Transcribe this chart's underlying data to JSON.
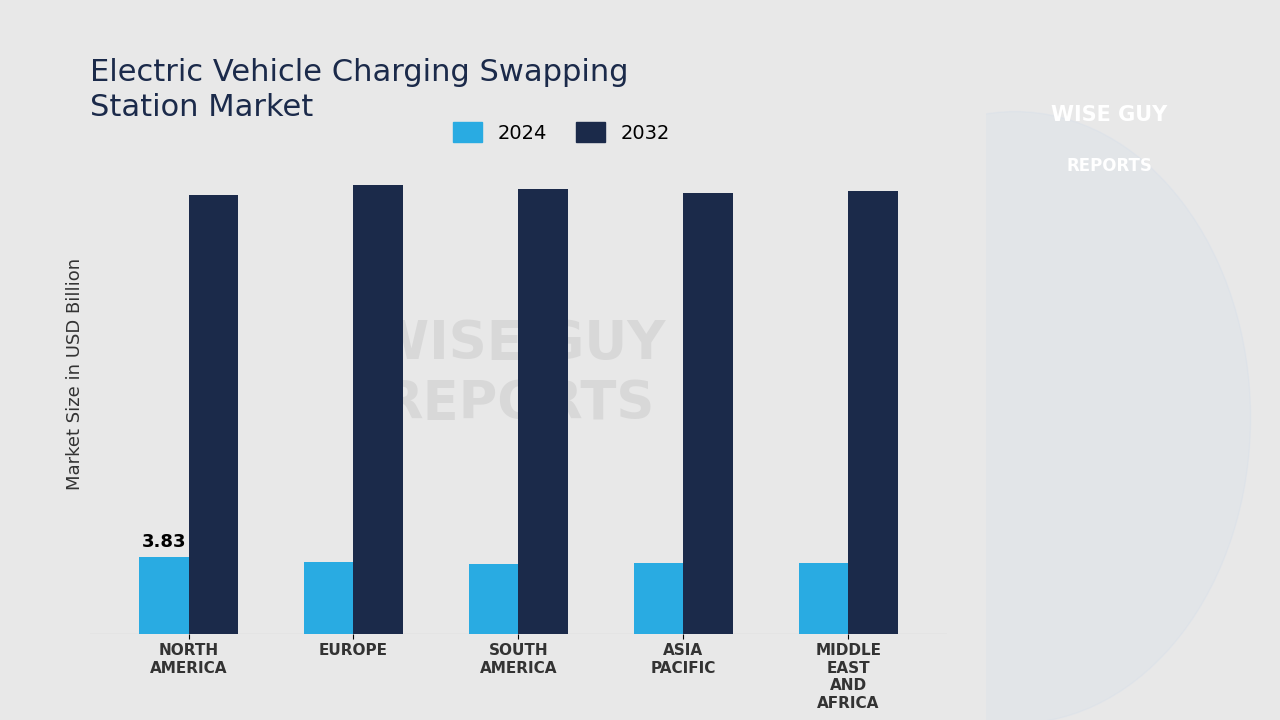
{
  "title": "Electric Vehicle Charging Swapping\nStation Market",
  "ylabel": "Market Size in USD Billion",
  "categories": [
    "NORTH\nAMERICA",
    "EUROPE",
    "SOUTH\nAMERICA",
    "ASIA\nPACIFIC",
    "MIDDLE\nEAST\nAND\nAFRICA"
  ],
  "values_2024": [
    3.83,
    3.6,
    3.5,
    3.55,
    3.52
  ],
  "values_2032": [
    22.0,
    22.5,
    22.3,
    22.1,
    22.2
  ],
  "label_2024_value": "3.83",
  "label_2024_index": 0,
  "color_2024": "#29ABE2",
  "color_2032": "#1B2A4A",
  "legend_label_2024": "2024",
  "legend_label_2032": "2032",
  "bg_color": "#E8E8E8",
  "plot_bg_color": "#E8E8E8",
  "title_color": "#1B2A4A",
  "right_panel_color": "#1B2A4A",
  "bar_width": 0.3,
  "ylim": [
    0,
    26
  ],
  "title_fontsize": 22,
  "ylabel_fontsize": 13,
  "tick_fontsize": 11,
  "legend_fontsize": 14,
  "annotation_fontsize": 13
}
